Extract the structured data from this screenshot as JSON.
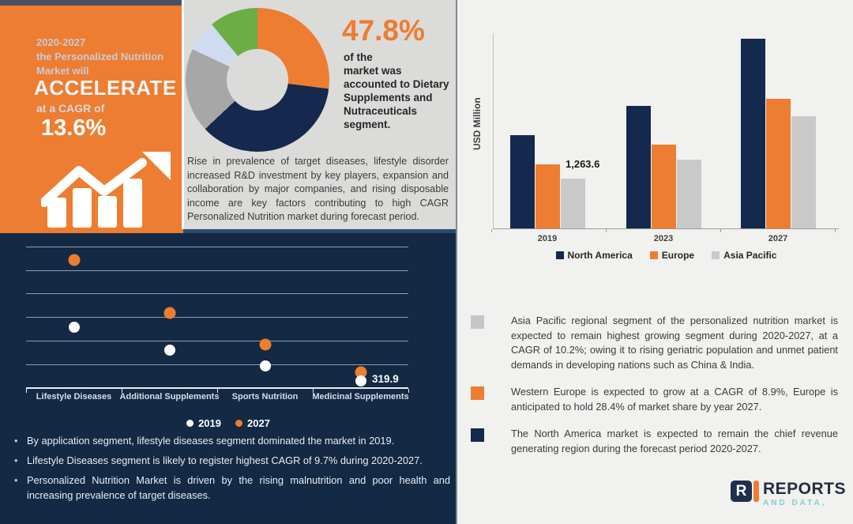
{
  "colors": {
    "orange": "#ED7D31",
    "navy": "#13294D",
    "panel_navy": "#132944",
    "bar_gray": "#C9C9C9",
    "donut_gray": "#A7A7A7",
    "light_blue": "#CFDCF0",
    "green": "#6BAE45",
    "gray_panel_bg": "#DBDBD9",
    "right_bg": "#F1F1EF",
    "teal": "#82CDD6"
  },
  "left_panel": {
    "period": "2020-2027",
    "line1": "the Personalized Nutrition",
    "line2": "Market will",
    "headline": "ACCELERATE",
    "line3": "at a CAGR of",
    "cagr": "13.6%"
  },
  "donut_section": {
    "stat": "47.8%",
    "stat_caption": "of the\nmarket was\naccounted to Dietary\nSupplements and\nNutraceuticals\nsegment.",
    "paragraph": "Rise in prevalence of target diseases, lifestyle disorder increased R&D investment by key players, expansion and collaboration by major companies, and rising disposable income are key factors contributing to high CAGR Personalized Nutrition market during forecast period."
  },
  "left_bullets": [
    "By application segment, lifestyle diseases segment dominated the market in 2019.",
    "Lifestyle Diseases segment is likely to register highest CAGR of 9.7% during 2020-2027.",
    "Personalized Nutrition Market is driven by the rising malnutrition and poor health and increasing prevalence of target diseases."
  ],
  "right_bullets": [
    {
      "square_color": "#C6C6C6",
      "text": "Asia Pacific regional segment of the personalized nutrition market is expected to remain highest growing segment during 2020-2027, at a CAGR of 10.2%; owing it to rising geriatric population and unmet patient demands in  developing nations such as China & India."
    },
    {
      "square_color": "#ED7D31",
      "text": "Western Europe is expected to grow at a CAGR of 8.9%, Europe is anticipated to hold 28.4% of market share by year 2027."
    },
    {
      "square_color": "#13294D",
      "text": "The North America market is expected to remain the chief revenue generating region during the forecast period 2020-2027."
    }
  ],
  "logo": {
    "mark": "R",
    "name": "REPORTS",
    "sub": "AND DATA,"
  },
  "chart_data": [
    {
      "type": "pie",
      "donut": true,
      "labels": [
        "orange-segment",
        "navy-segment",
        "gray-segment",
        "light-blue-segment",
        "green-segment"
      ],
      "values": [
        27,
        36,
        19,
        7,
        11
      ],
      "colors": [
        "#ED7D31",
        "#14294D",
        "#A7A7A7",
        "#CFDCF0",
        "#6BAE45"
      ]
    },
    {
      "type": "bar",
      "ylabel": "USD Million",
      "categories": [
        "2019",
        "2023",
        "2027"
      ],
      "series": [
        {
          "name": "North America",
          "color": "#13294D",
          "values": [
            2360,
            3110,
            4810
          ]
        },
        {
          "name": "Europe",
          "color": "#ED7D31",
          "values": [
            1630,
            2120,
            3290
          ]
        },
        {
          "name": "Asia Pacific",
          "color": "#C9C9C9",
          "values": [
            1263.6,
            1740,
            2850
          ]
        }
      ],
      "data_labels": [
        {
          "series": "Asia Pacific",
          "category": "2019",
          "text": "1,263.6"
        }
      ],
      "legend_position": "bottom",
      "grid": false
    },
    {
      "type": "scatter",
      "categories": [
        "Lifestyle Diseases",
        "Additional Supplements",
        "Sports Nutrition",
        "Medicinal Supplements"
      ],
      "series": [
        {
          "name": "2019",
          "color": "#FFFFFF",
          "values": [
            2730,
            1710,
            1000,
            319.9
          ]
        },
        {
          "name": "2027",
          "color": "#ED7D31",
          "values": [
            5760,
            3380,
            1950,
            710
          ]
        }
      ],
      "data_labels": [
        {
          "series": "2019",
          "category": "Medicinal Supplements",
          "text": "319.9"
        }
      ],
      "legend_position": "bottom",
      "grid": true
    }
  ]
}
